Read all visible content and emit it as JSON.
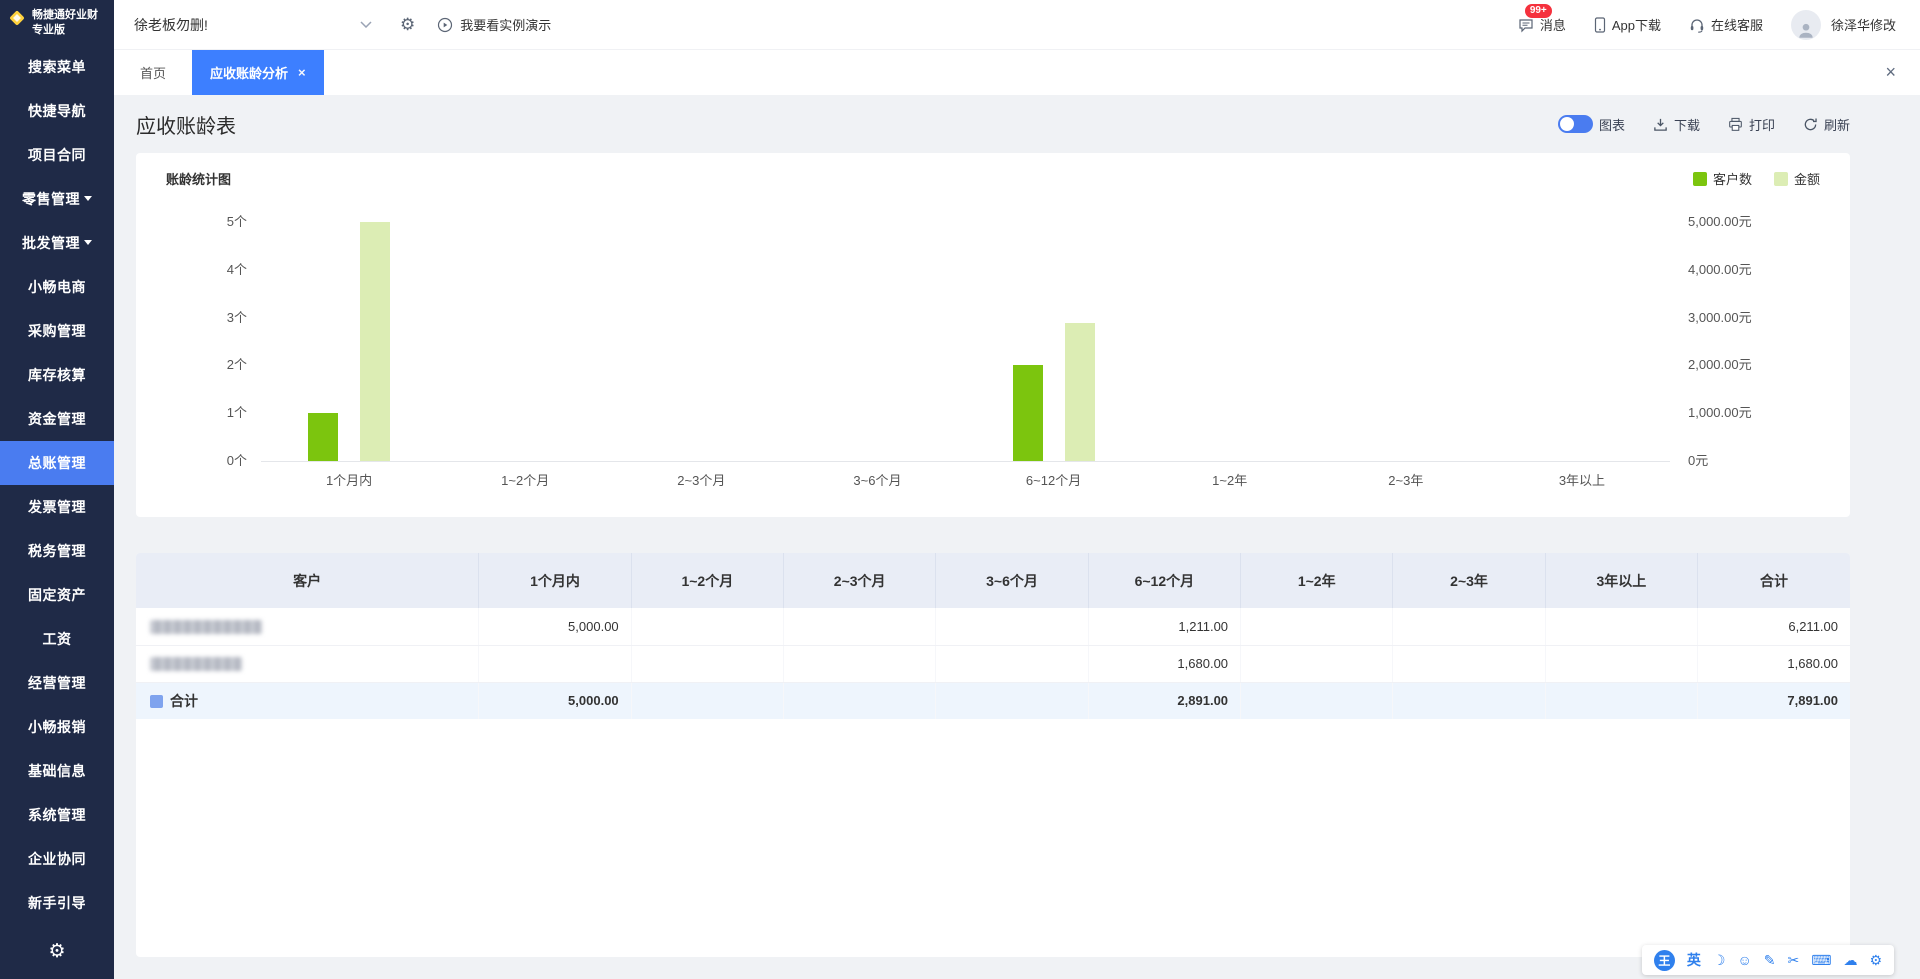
{
  "app": {
    "brand_line1": "畅捷通好业财",
    "brand_line2": "专业版"
  },
  "colors": {
    "accent_blue": "#3d7fff",
    "sidebar_bg": "#1f2a47",
    "sidebar_active": "#4a7cf0",
    "badge_red": "#f5313d",
    "bar_customers_green": "#7cc50e",
    "bar_amount_green": "#dcedb4",
    "table_header_bg": "#e9edf6",
    "total_row_bg": "#eef5fd"
  },
  "sidebar": {
    "items": [
      {
        "label": "搜索菜单",
        "active": false,
        "dropdown": false
      },
      {
        "label": "快捷导航",
        "active": false,
        "dropdown": false
      },
      {
        "label": "项目合同",
        "active": false,
        "dropdown": false
      },
      {
        "label": "零售管理",
        "active": false,
        "dropdown": true
      },
      {
        "label": "批发管理",
        "active": false,
        "dropdown": true
      },
      {
        "label": "小畅电商",
        "active": false,
        "dropdown": false
      },
      {
        "label": "采购管理",
        "active": false,
        "dropdown": false
      },
      {
        "label": "库存核算",
        "active": false,
        "dropdown": false
      },
      {
        "label": "资金管理",
        "active": false,
        "dropdown": false
      },
      {
        "label": "总账管理",
        "active": true,
        "dropdown": false
      },
      {
        "label": "发票管理",
        "active": false,
        "dropdown": false
      },
      {
        "label": "税务管理",
        "active": false,
        "dropdown": false
      },
      {
        "label": "固定资产",
        "active": false,
        "dropdown": false
      },
      {
        "label": "工资",
        "active": false,
        "dropdown": false
      },
      {
        "label": "经营管理",
        "active": false,
        "dropdown": false
      },
      {
        "label": "小畅报销",
        "active": false,
        "dropdown": false
      },
      {
        "label": "基础信息",
        "active": false,
        "dropdown": false
      },
      {
        "label": "系统管理",
        "active": false,
        "dropdown": false
      },
      {
        "label": "企业协同",
        "active": false,
        "dropdown": false
      },
      {
        "label": "新手引导",
        "active": false,
        "dropdown": false
      }
    ]
  },
  "topbar": {
    "company": "徐老板勿删!",
    "demo_label": "我要看实例演示",
    "message_label": "消息",
    "message_badge": "99+",
    "app_download_label": "App下载",
    "service_label": "在线客服",
    "user_name": "徐泽华修改"
  },
  "tabs": {
    "home": "首页",
    "active_tab": "应收账龄分析"
  },
  "page": {
    "title": "应收账龄表",
    "toggle_label": "图表",
    "download_label": "下载",
    "print_label": "打印",
    "refresh_label": "刷新"
  },
  "chart_data": {
    "type": "bar",
    "title": "账龄统计图",
    "categories": [
      "1个月内",
      "1~2个月",
      "2~3个月",
      "3~6个月",
      "6~12个月",
      "1~2年",
      "2~3年",
      "3年以上"
    ],
    "series": [
      {
        "name": "客户数",
        "axis": "left",
        "color": "#7cc50e",
        "values": [
          1,
          0,
          0,
          0,
          2,
          0,
          0,
          0
        ]
      },
      {
        "name": "金额",
        "axis": "right",
        "color": "#dcedb4",
        "values": [
          5000,
          0,
          0,
          0,
          2891,
          0,
          0,
          0
        ]
      }
    ],
    "left_axis": {
      "ticks": [
        "0个",
        "1个",
        "2个",
        "3个",
        "4个",
        "5个"
      ],
      "max": 5
    },
    "right_axis": {
      "ticks": [
        "0元",
        "1,000.00元",
        "2,000.00元",
        "3,000.00元",
        "4,000.00元",
        "5,000.00元"
      ],
      "max": 5000
    },
    "legend_position": "top-right",
    "grid": false
  },
  "table": {
    "headers": [
      "客户",
      "1个月内",
      "1~2个月",
      "2~3个月",
      "3~6个月",
      "6~12个月",
      "1~2年",
      "2~3年",
      "3年以上",
      "合计"
    ],
    "rows": [
      {
        "customer": "",
        "redacted": true,
        "values": [
          "5,000.00",
          "",
          "",
          "",
          "1,211.00",
          "",
          "",
          "",
          "6,211.00"
        ]
      },
      {
        "customer": "",
        "redacted": true,
        "values": [
          "",
          "",
          "",
          "",
          "1,680.00",
          "",
          "",
          "",
          "1,680.00"
        ]
      }
    ],
    "total": {
      "label": "合计",
      "values": [
        "5,000.00",
        "",
        "",
        "",
        "2,891.00",
        "",
        "",
        "",
        "7,891.00"
      ]
    }
  },
  "ime": {
    "badge": "王",
    "lang": "英",
    "icons": [
      {
        "name": "moon-icon",
        "glyph": "☽"
      },
      {
        "name": "emoji-icon",
        "glyph": "☺"
      },
      {
        "name": "pen-icon",
        "glyph": "✎"
      },
      {
        "name": "scissors-icon",
        "glyph": "✂"
      },
      {
        "name": "keyboard-icon",
        "glyph": "⌨"
      },
      {
        "name": "cloud-icon",
        "glyph": "☁"
      },
      {
        "name": "settings-icon",
        "glyph": "⚙"
      }
    ]
  }
}
